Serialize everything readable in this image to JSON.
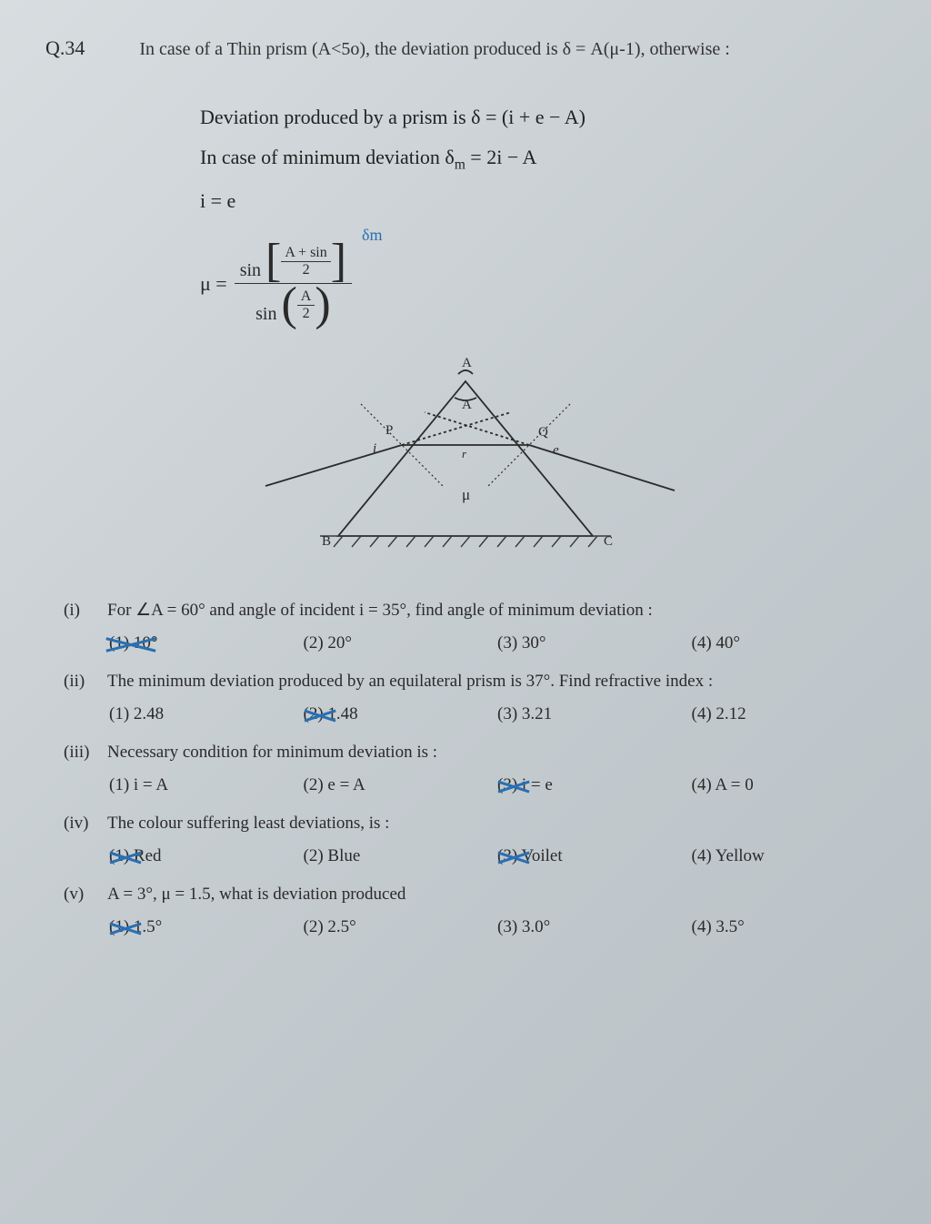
{
  "question_number": "Q.34",
  "intro": "In case of a Thin prism (A<5o), the deviation produced is δ = A(μ-1), otherwise :",
  "theory": {
    "line1": "Deviation produced by a prism is δ = (i + e − A)",
    "line2_prefix": "In case of minimum deviation δ",
    "line2_sub": "m",
    "line2_suffix": " = 2i − A",
    "line3": "i = e"
  },
  "formula": {
    "lhs": "μ =",
    "num_prefix": "sin",
    "num_inner_top": "A + sin",
    "num_inner_bot": "2",
    "den_prefix": "sin",
    "den_inner_top": "A",
    "den_inner_bot": "2",
    "annotation": "δm"
  },
  "diagram": {
    "stroke": "#2a2a2a",
    "stroke_width": 1.8,
    "labels": {
      "A_top": "A",
      "A_angle": "A",
      "P": "P",
      "Q": "Q",
      "i": "i",
      "e": "e",
      "r": "r",
      "mu": "μ",
      "B": "B",
      "C": "C"
    },
    "hatch_color": "#3a3a3a"
  },
  "subquestions": [
    {
      "roman": "(i)",
      "text": "For ∠A = 60° and angle of incident i = 35°, find angle of minimum deviation :",
      "options": [
        {
          "num": "(1)",
          "val": "10°",
          "mark": "struck"
        },
        {
          "num": "(2)",
          "val": "20°",
          "mark": ""
        },
        {
          "num": "(3)",
          "val": "30°",
          "mark": ""
        },
        {
          "num": "(4)",
          "val": "40°",
          "mark": ""
        }
      ]
    },
    {
      "roman": "(ii)",
      "text": "The minimum deviation produced by an equilateral prism is 37°. Find refractive index :",
      "options": [
        {
          "num": "(1)",
          "val": "2.48",
          "mark": ""
        },
        {
          "num": "(2)",
          "val": "1.48",
          "mark": "circled-strike"
        },
        {
          "num": "(3)",
          "val": "3.21",
          "mark": ""
        },
        {
          "num": "(4)",
          "val": "2.12",
          "mark": ""
        }
      ]
    },
    {
      "roman": "(iii)",
      "text": "Necessary condition for minimum deviation is :",
      "options": [
        {
          "num": "(1)",
          "val": "i = A",
          "mark": ""
        },
        {
          "num": "(2)",
          "val": "e = A",
          "mark": ""
        },
        {
          "num": "(3)",
          "val": "i = e",
          "mark": "circled-strike"
        },
        {
          "num": "(4)",
          "val": "A = 0",
          "mark": ""
        }
      ]
    },
    {
      "roman": "(iv)",
      "text": "The colour suffering least deviations, is :",
      "options": [
        {
          "num": "(1)",
          "val": "Red",
          "mark": "circled-strike"
        },
        {
          "num": "(2)",
          "val": "Blue",
          "mark": ""
        },
        {
          "num": "(3)",
          "val": "Voilet",
          "mark": "circled-strike"
        },
        {
          "num": "(4)",
          "val": "Yellow",
          "mark": ""
        }
      ]
    },
    {
      "roman": "(v)",
      "text": "A = 3°, μ = 1.5, what is deviation produced",
      "options": [
        {
          "num": "(1)",
          "val": "1.5°",
          "mark": "circled-strike"
        },
        {
          "num": "(2)",
          "val": "2.5°",
          "mark": ""
        },
        {
          "num": "(3)",
          "val": "3.0°",
          "mark": ""
        },
        {
          "num": "(4)",
          "val": "3.5°",
          "mark": ""
        }
      ]
    }
  ]
}
